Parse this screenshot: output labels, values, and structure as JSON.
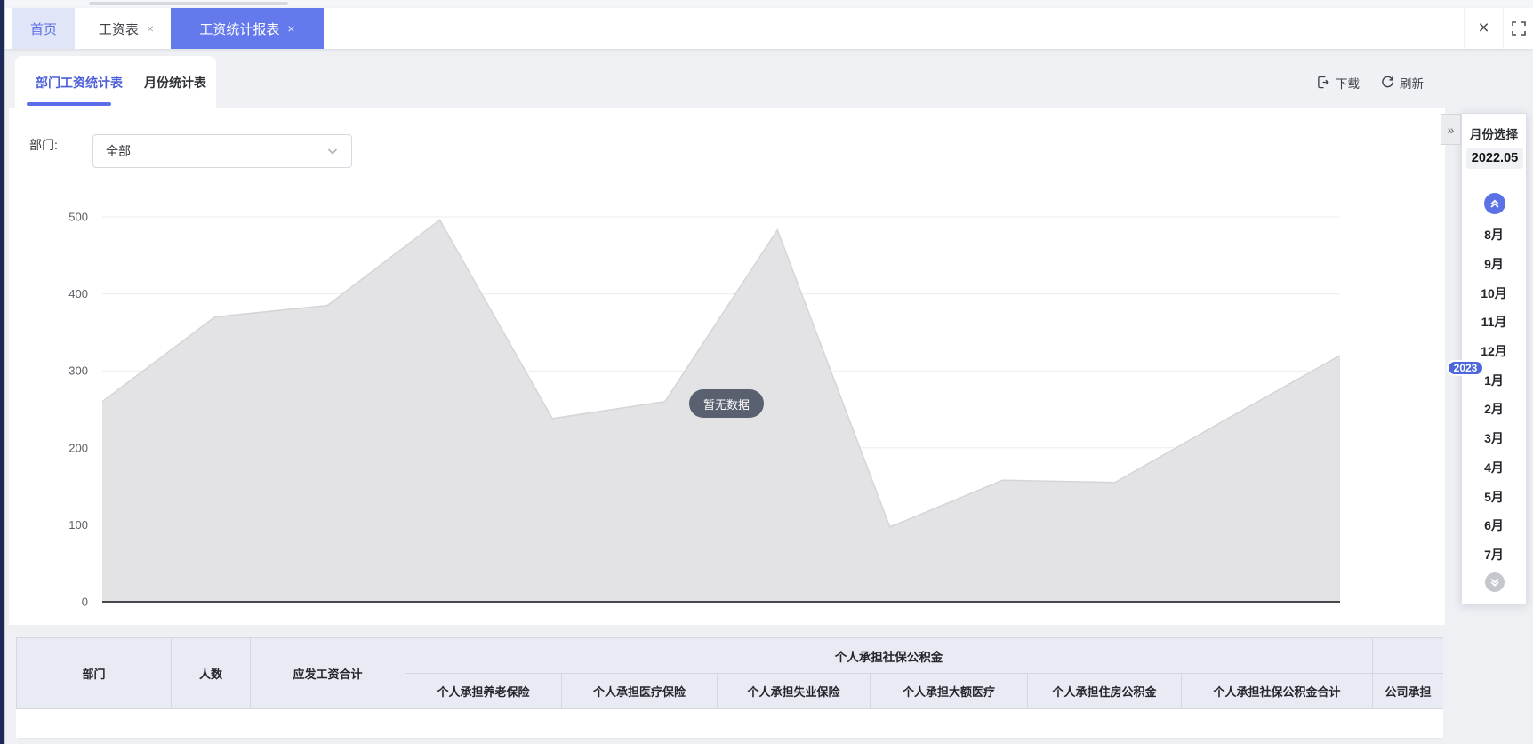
{
  "top": {
    "tabs": [
      {
        "label": "首页"
      },
      {
        "label": "工资表",
        "close": "×"
      },
      {
        "label": "工资统计报表",
        "close": "×"
      }
    ],
    "close_window": "×"
  },
  "subtabs": [
    {
      "label": "部门工资统计表"
    },
    {
      "label": "月份统计表"
    }
  ],
  "actions": {
    "download": "下载",
    "refresh": "刷新"
  },
  "filter": {
    "label": "部门:",
    "value": "全部"
  },
  "chart_data": {
    "type": "area",
    "x": [
      1,
      2,
      3,
      4,
      5,
      6,
      7,
      8,
      9,
      10,
      11,
      12
    ],
    "values": [
      260,
      370,
      385,
      496,
      238,
      260,
      483,
      97,
      158,
      155,
      238,
      320
    ],
    "title": "",
    "xlabel": "",
    "ylabel": "",
    "ylim": [
      0,
      500
    ],
    "yticks": [
      0,
      100,
      200,
      300,
      400,
      500
    ],
    "grid": true,
    "x_tick_labels_visible": false,
    "series_fill_color": "#e3e3e6",
    "overlay_text": "暂无数据"
  },
  "no_data_label": "暂无数据",
  "month_panel": {
    "collapse": "»",
    "title": "月份选择",
    "current": "2022.05",
    "year_badge": "2023",
    "months": [
      "8月",
      "9月",
      "10月",
      "11月",
      "12月",
      "1月",
      "2月",
      "3月",
      "4月",
      "5月",
      "6月",
      "7月"
    ]
  },
  "table": {
    "fixed_columns": [
      "部门",
      "人数",
      "应发工资合计"
    ],
    "group_personal": {
      "label": "个人承担社保公积金",
      "columns": [
        "个人承担养老保险",
        "个人承担医疗保险",
        "个人承担失业保险",
        "个人承担大额医疗",
        "个人承担住房公积金",
        "个人承担社保公积金合计"
      ]
    },
    "group_company": {
      "label": "",
      "columns": [
        "公司承担"
      ]
    }
  }
}
